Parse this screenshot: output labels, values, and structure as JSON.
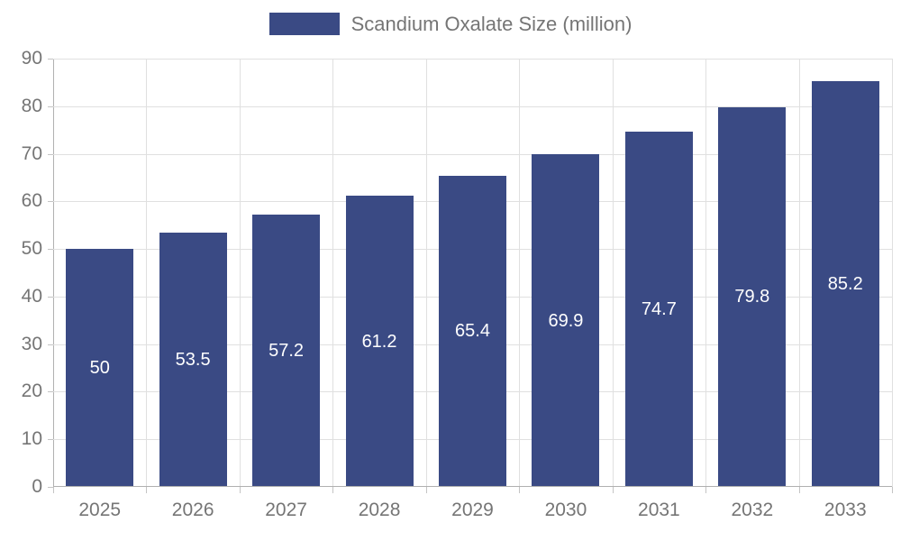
{
  "chart_data": {
    "type": "bar",
    "legend": "Scandium Oxalate Size (million)",
    "categories": [
      "2025",
      "2026",
      "2027",
      "2028",
      "2029",
      "2030",
      "2031",
      "2032",
      "2033"
    ],
    "values": [
      50,
      53.5,
      57.2,
      61.2,
      65.4,
      69.9,
      74.7,
      79.8,
      85.2
    ],
    "value_labels": [
      "50",
      "53.5",
      "57.2",
      "61.2",
      "65.4",
      "69.9",
      "74.7",
      "79.8",
      "85.2"
    ],
    "ytick_labels": [
      "0",
      "10",
      "20",
      "30",
      "40",
      "50",
      "60",
      "70",
      "80",
      "90"
    ],
    "ylim": [
      0,
      90
    ],
    "ytick_step": 10,
    "grid": true,
    "legend_position": "top-center",
    "colors": {
      "bar": "#3A4A84",
      "grid": "#e0e0e0",
      "axis": "#b0b0b0",
      "tick": "#c4c4c4",
      "tick_label": "#757575",
      "bar_label": "#ffffff",
      "legend_text": "#757575"
    }
  }
}
